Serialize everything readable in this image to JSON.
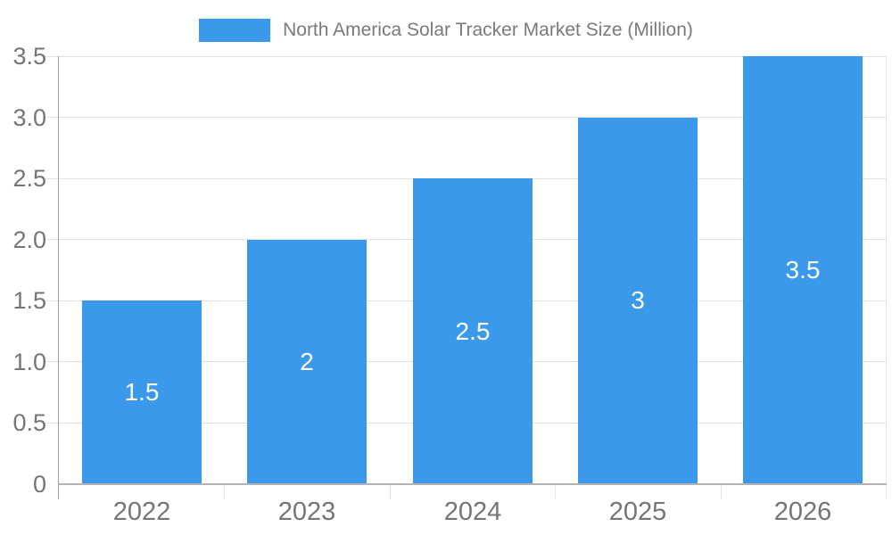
{
  "chart_data": {
    "type": "bar",
    "title": "North America Solar Tracker Market Size (Million)",
    "categories": [
      "2022",
      "2023",
      "2024",
      "2025",
      "2026"
    ],
    "values": [
      1.5,
      2,
      2.5,
      3,
      3.5
    ],
    "bar_labels": [
      "1.5",
      "2",
      "2.5",
      "3",
      "3.5"
    ],
    "xlabel": "",
    "ylabel": "",
    "ylim": [
      0,
      3.5
    ],
    "ytick_step": 0.5,
    "yticks": [
      "0",
      "0.5",
      "1.0",
      "1.5",
      "2.0",
      "2.5",
      "3.0",
      "3.5"
    ],
    "grid": true,
    "legend_position": "top",
    "colors": {
      "bar": "#3B99EC",
      "bar_label_text": "#FFFFFF",
      "axis_label_text": "#757575",
      "title_text": "#7A7A7A",
      "gridline": "#E2E2E2",
      "y_axis_line": "#9E9E9E",
      "x_axis_line": "#B3B3B3",
      "background": "#FFFFFF"
    }
  }
}
